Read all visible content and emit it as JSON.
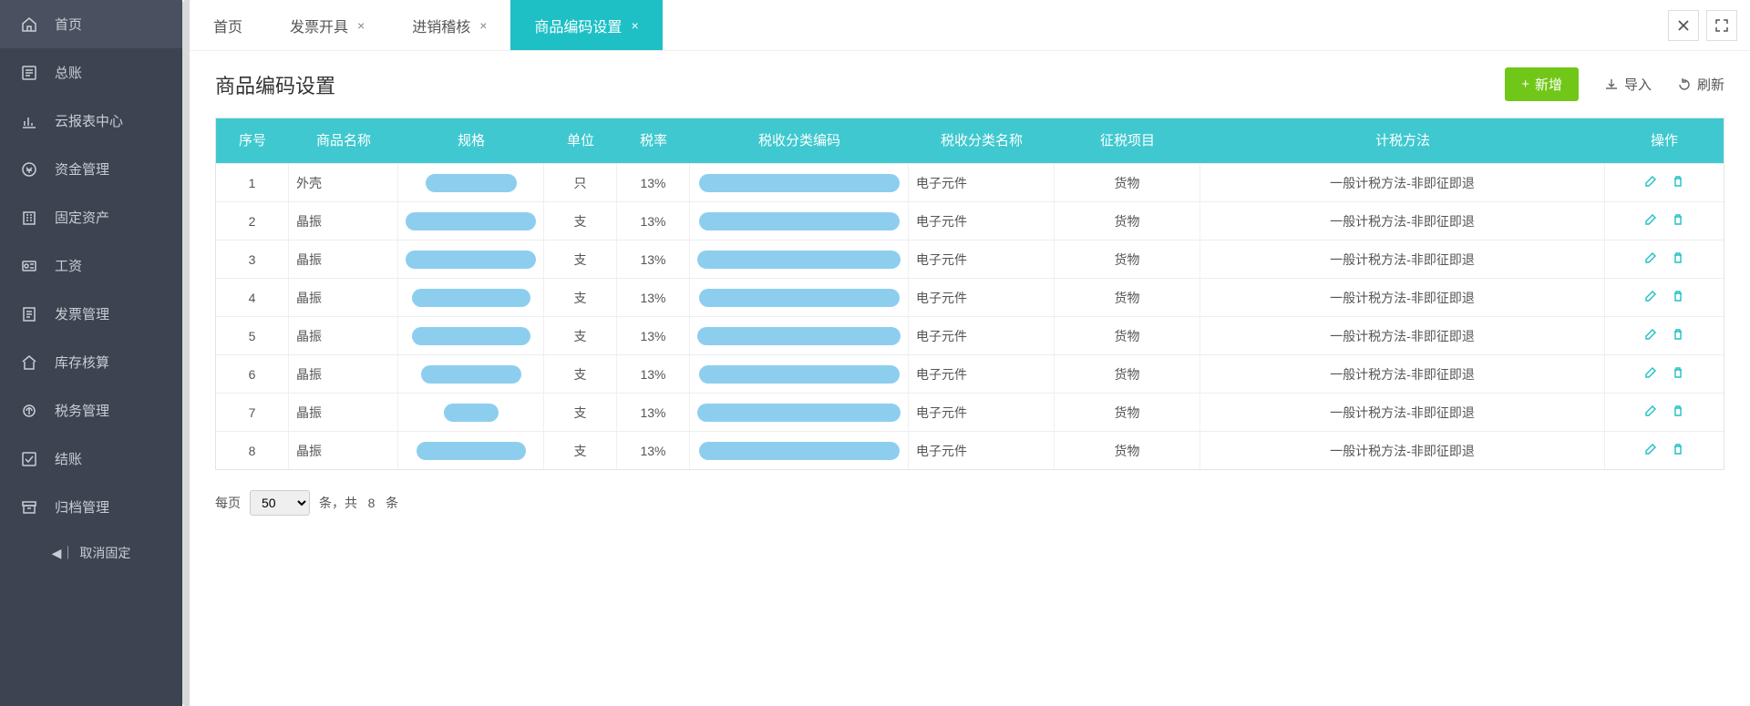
{
  "sidebar": {
    "items": [
      {
        "key": "home",
        "label": "首页",
        "icon": "home"
      },
      {
        "key": "ledger",
        "label": "总账",
        "icon": "ledger"
      },
      {
        "key": "report",
        "label": "云报表中心",
        "icon": "chart"
      },
      {
        "key": "fund",
        "label": "资金管理",
        "icon": "money"
      },
      {
        "key": "asset",
        "label": "固定资产",
        "icon": "building"
      },
      {
        "key": "salary",
        "label": "工资",
        "icon": "badge"
      },
      {
        "key": "invoice",
        "label": "发票管理",
        "icon": "receipt"
      },
      {
        "key": "stock",
        "label": "库存核算",
        "icon": "house"
      },
      {
        "key": "taxmgmt",
        "label": "税务管理",
        "icon": "fingerprint"
      },
      {
        "key": "close",
        "label": "结账",
        "icon": "check"
      },
      {
        "key": "archive",
        "label": "归档管理",
        "icon": "archive"
      }
    ],
    "cancel_pin": "取消固定"
  },
  "tabs": {
    "items": [
      {
        "label": "首页",
        "closable": false,
        "active": false
      },
      {
        "label": "发票开具",
        "closable": true,
        "active": false
      },
      {
        "label": "进销稽核",
        "closable": true,
        "active": false
      },
      {
        "label": "商品编码设置",
        "closable": true,
        "active": true
      }
    ]
  },
  "page": {
    "title": "商品编码设置",
    "toolbar": {
      "add": "新增",
      "import": "导入",
      "refresh": "刷新"
    },
    "columns": [
      {
        "key": "seq",
        "title": "序号",
        "class": "c-seq"
      },
      {
        "key": "name",
        "title": "商品名称",
        "class": "c-name"
      },
      {
        "key": "spec",
        "title": "规格",
        "class": "c-spec"
      },
      {
        "key": "unit",
        "title": "单位",
        "class": "c-unit"
      },
      {
        "key": "rate",
        "title": "税率",
        "class": "c-rate"
      },
      {
        "key": "code",
        "title": "税收分类编码",
        "class": "c-code"
      },
      {
        "key": "cat",
        "title": "税收分类名称",
        "class": "c-cat"
      },
      {
        "key": "taxitem",
        "title": "征税项目",
        "class": "c-tax"
      },
      {
        "key": "method",
        "title": "计税方法",
        "class": "c-meth"
      },
      {
        "key": "ops",
        "title": "操作",
        "class": "c-ops"
      }
    ],
    "rows": [
      {
        "seq": 1,
        "name": "外壳",
        "spec_redact_w": 100,
        "unit": "只",
        "rate": "13%",
        "code_redact_w": 220,
        "cat": "电子元件",
        "taxitem": "货物",
        "method": "一般计税方法-非即征即退"
      },
      {
        "seq": 2,
        "name": "晶振",
        "spec_redact_w": 160,
        "unit": "支",
        "rate": "13%",
        "code_redact_w": 220,
        "cat": "电子元件",
        "taxitem": "货物",
        "method": "一般计税方法-非即征即退"
      },
      {
        "seq": 3,
        "name": "晶振",
        "spec_redact_w": 160,
        "unit": "支",
        "rate": "13%",
        "code_redact_w": 240,
        "cat": "电子元件",
        "taxitem": "货物",
        "method": "一般计税方法-非即征即退"
      },
      {
        "seq": 4,
        "name": "晶振",
        "spec_redact_w": 130,
        "unit": "支",
        "rate": "13%",
        "code_redact_w": 220,
        "cat": "电子元件",
        "taxitem": "货物",
        "method": "一般计税方法-非即征即退"
      },
      {
        "seq": 5,
        "name": "晶振",
        "spec_redact_w": 130,
        "unit": "支",
        "rate": "13%",
        "code_redact_w": 230,
        "cat": "电子元件",
        "taxitem": "货物",
        "method": "一般计税方法-非即征即退"
      },
      {
        "seq": 6,
        "name": "晶振",
        "spec_redact_w": 110,
        "unit": "支",
        "rate": "13%",
        "code_redact_w": 220,
        "cat": "电子元件",
        "taxitem": "货物",
        "method": "一般计税方法-非即征即退"
      },
      {
        "seq": 7,
        "name": "晶振",
        "spec_redact_w": 60,
        "unit": "支",
        "rate": "13%",
        "code_redact_w": 230,
        "cat": "电子元件",
        "taxitem": "货物",
        "method": "一般计税方法-非即征即退"
      },
      {
        "seq": 8,
        "name": "晶振",
        "spec_redact_w": 120,
        "unit": "支",
        "rate": "13%",
        "code_redact_w": 220,
        "cat": "电子元件",
        "taxitem": "货物",
        "method": "一般计税方法-非即征即退"
      }
    ],
    "pager": {
      "per_page_label": "每页",
      "per_page_value": "50",
      "summary_prefix": "条，共",
      "total": "8",
      "summary_suffix": "条"
    }
  },
  "colors": {
    "sidebar_bg": "#3d4351",
    "tab_active_bg": "#1ec0c6",
    "thead_bg": "#3fc8cf",
    "add_btn_bg": "#71c717",
    "redact_bg": "#8dceef",
    "action_color": "#1ec0c6"
  }
}
